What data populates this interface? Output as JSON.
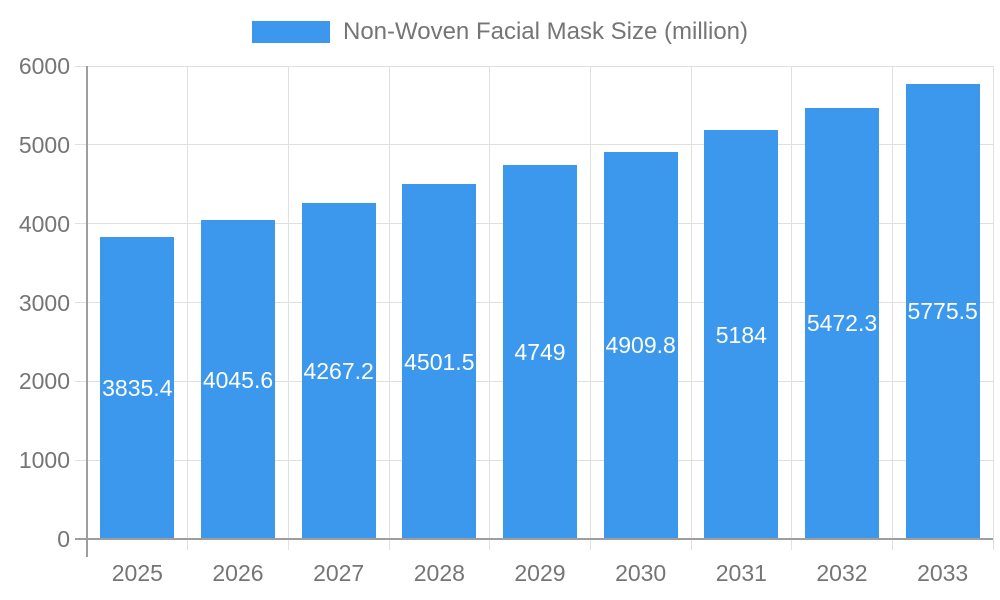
{
  "chart_data": {
    "type": "bar",
    "title": "Non-Woven Facial Mask Size (million)",
    "legend_label": "Non-Woven Facial Mask Size (million)",
    "legend_position": "top",
    "categories": [
      "2025",
      "2026",
      "2027",
      "2028",
      "2029",
      "2030",
      "2031",
      "2032",
      "2033"
    ],
    "values": [
      3835.4,
      4045.6,
      4267.2,
      4501.5,
      4749,
      4909.8,
      5184,
      5472.3,
      5775.5
    ],
    "bar_labels": [
      "3835.4",
      "4045.6",
      "4267.2",
      "4501.5",
      "4749",
      "4909.8",
      "5184",
      "5472.3",
      "5775.5"
    ],
    "xlabel": "",
    "ylabel": "",
    "ylim": [
      0,
      6000
    ],
    "ytick_interval": 1000,
    "yticks": [
      "0",
      "1000",
      "2000",
      "3000",
      "4000",
      "5000",
      "6000"
    ],
    "grid": true,
    "colors": {
      "bar": "#3B98EC",
      "bar_label_text": "#ffffff",
      "axis_text": "#757575",
      "grid_line": "#e0e0e0",
      "axis_line": "#9e9e9e",
      "background": "#ffffff"
    }
  }
}
